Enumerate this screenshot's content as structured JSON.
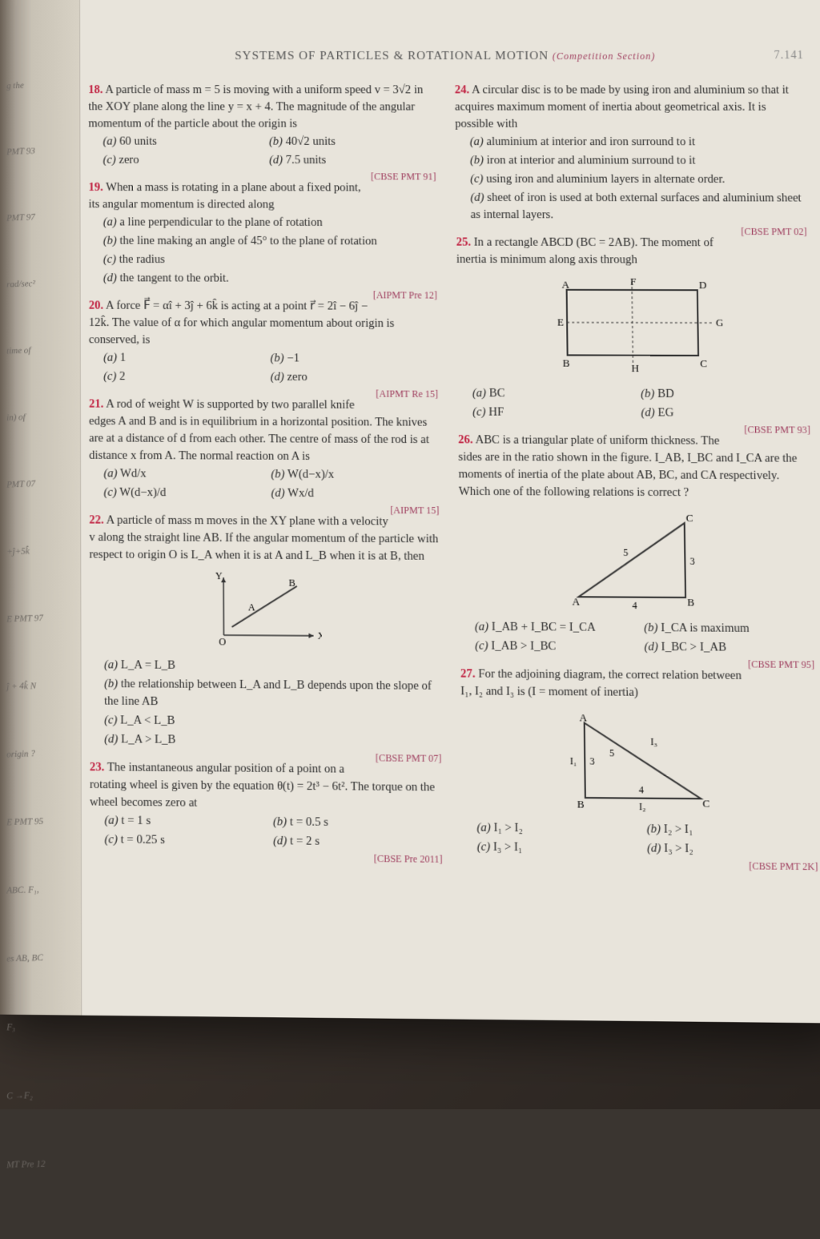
{
  "chapter_title": "SYSTEMS OF PARTICLES & ROTATIONAL MOTION",
  "section_subtitle": "(Competition Section)",
  "page_number": "7.141",
  "margin_notes": [
    "g the",
    "PMT 93",
    "PMT 97",
    "rad/sec²",
    "time of",
    "in) of",
    "PMT 07",
    "+ĵ+5k̂",
    "E PMT 97",
    "ĵ + 4k̂ N",
    "origin ?",
    "E PMT 95",
    "ABC. F₁,",
    "es AB, BC",
    "F₃",
    "C →F₂",
    "MT Pre 12"
  ],
  "questions": [
    {
      "n": "18",
      "text": "A particle of mass m = 5 is moving with a uniform speed v = 3√2 in the XOY plane along the line y = x + 4. The magnitude of the angular momentum of the particle about the origin is",
      "tag": "[CBSE PMT 91]",
      "opts": [
        [
          "(a)",
          "60 units"
        ],
        [
          "(b)",
          "40√2 units"
        ],
        [
          "(c)",
          "zero"
        ],
        [
          "(d)",
          "7.5 units"
        ]
      ]
    },
    {
      "n": "19",
      "text": "When a mass is rotating in a plane about a fixed point, its angular momentum is directed along",
      "tag": "[AIPMT Pre 12]",
      "opts": [
        [
          "(a)",
          "a line perpendicular to the plane of rotation"
        ],
        [
          "(b)",
          "the line making an angle of 45° to the plane of rotation"
        ],
        [
          "(c)",
          "the radius"
        ],
        [
          "(d)",
          "the tangent to the orbit."
        ]
      ]
    },
    {
      "n": "20",
      "text": "A force F⃗ = αî + 3ĵ + 6k̂ is acting at a point r⃗ = 2î − 6ĵ − 12k̂. The value of α for which angular momentum about origin is conserved, is",
      "tag": "[AIPMT Re 15]",
      "opts": [
        [
          "(a)",
          "1"
        ],
        [
          "(b)",
          "−1"
        ],
        [
          "(c)",
          "2"
        ],
        [
          "(d)",
          "zero"
        ]
      ]
    },
    {
      "n": "21",
      "text": "A rod of weight W is supported by two parallel knife edges A and B and is in equilibrium in a horizontal position. The knives are at a distance of d from each other. The centre of mass of the rod is at distance x from A. The normal reaction on A is",
      "tag": "[AIPMT 15]",
      "opts": [
        [
          "(a)",
          "Wd/x"
        ],
        [
          "(b)",
          "W(d−x)/x"
        ],
        [
          "(c)",
          "W(d−x)/d"
        ],
        [
          "(d)",
          "Wx/d"
        ]
      ]
    },
    {
      "n": "22",
      "text": "A particle of mass m moves in the XY plane with a velocity v along the straight line AB. If the angular momentum of the particle with respect to origin O is L_A when it is at A and L_B when it is at B, then",
      "tag": "[CBSE PMT 07]",
      "figure": "line_xy",
      "opts": [
        [
          "(a)",
          "L_A = L_B"
        ],
        [
          "(b)",
          "the relationship between L_A and L_B depends upon the slope of the line AB"
        ],
        [
          "(c)",
          "L_A < L_B"
        ],
        [
          "(d)",
          "L_A > L_B"
        ]
      ]
    },
    {
      "n": "23",
      "text": "The instantaneous angular position of a point on a rotating wheel is given by the equation θ(t) = 2t³ − 6t². The torque on the wheel becomes zero at",
      "tag": "[CBSE Pre 2011]",
      "opts": [
        [
          "(a)",
          "t = 1 s"
        ],
        [
          "(b)",
          "t = 0.5 s"
        ],
        [
          "(c)",
          "t = 0.25 s"
        ],
        [
          "(d)",
          "t = 2 s"
        ]
      ]
    },
    {
      "n": "24",
      "text": "A circular disc is to be made by using iron and aluminium so that it acquires maximum moment of inertia about geometrical axis. It is possible with",
      "tag": "[CBSE PMT 02]",
      "opts": [
        [
          "(a)",
          "aluminium at interior and iron surround to it"
        ],
        [
          "(b)",
          "iron at interior and aluminium surround to it"
        ],
        [
          "(c)",
          "using iron and aluminium layers in alternate order."
        ],
        [
          "(d)",
          "sheet of iron is used at both external surfaces and aluminium sheet as internal layers."
        ]
      ]
    },
    {
      "n": "25",
      "text": "In a rectangle ABCD (BC = 2AB). The moment of inertia is minimum along axis through",
      "tag": "[CBSE PMT 93]",
      "figure": "rectangle",
      "rect_labels": {
        "A": "A",
        "B": "B",
        "C": "C",
        "D": "D",
        "E": "E",
        "F": "F",
        "G": "G",
        "H": "H"
      },
      "opts": [
        [
          "(a)",
          "BC"
        ],
        [
          "(b)",
          "BD"
        ],
        [
          "(c)",
          "HF"
        ],
        [
          "(d)",
          "EG"
        ]
      ]
    },
    {
      "n": "26",
      "text": "ABC is a triangular plate of uniform thickness. The sides are in the ratio shown in the figure. I_AB, I_BC and I_CA are the moments of inertia of the plate about AB, BC, and CA respectively. Which one of the following relations is correct ?",
      "tag": "[CBSE PMT 95]",
      "figure": "triangle_345",
      "tri_labels": {
        "A": "A",
        "B": "B",
        "C": "C",
        "s3": "3",
        "s4": "4",
        "s5": "5"
      },
      "opts": [
        [
          "(a)",
          "I_AB + I_BC = I_CA"
        ],
        [
          "(b)",
          "I_CA is maximum"
        ],
        [
          "(c)",
          "I_AB > I_BC"
        ],
        [
          "(d)",
          "I_BC > I_AB"
        ]
      ]
    },
    {
      "n": "27",
      "text": "For the adjoining diagram, the correct relation between I₁, I₂ and I₃ is (I = moment of inertia)",
      "tag": "[CBSE PMT 2K]",
      "figure": "triangle_inertia",
      "tri2_labels": {
        "A": "A",
        "B": "B",
        "C": "C",
        "I1": "I₁",
        "I2": "I₂",
        "I3": "I₃",
        "s3": "3",
        "s4": "4",
        "s5": "5"
      },
      "opts": [
        [
          "(a)",
          "I₁ > I₂"
        ],
        [
          "(b)",
          "I₂ > I₁"
        ],
        [
          "(c)",
          "I₃ > I₁"
        ],
        [
          "(d)",
          "I₃ > I₂"
        ]
      ]
    }
  ]
}
